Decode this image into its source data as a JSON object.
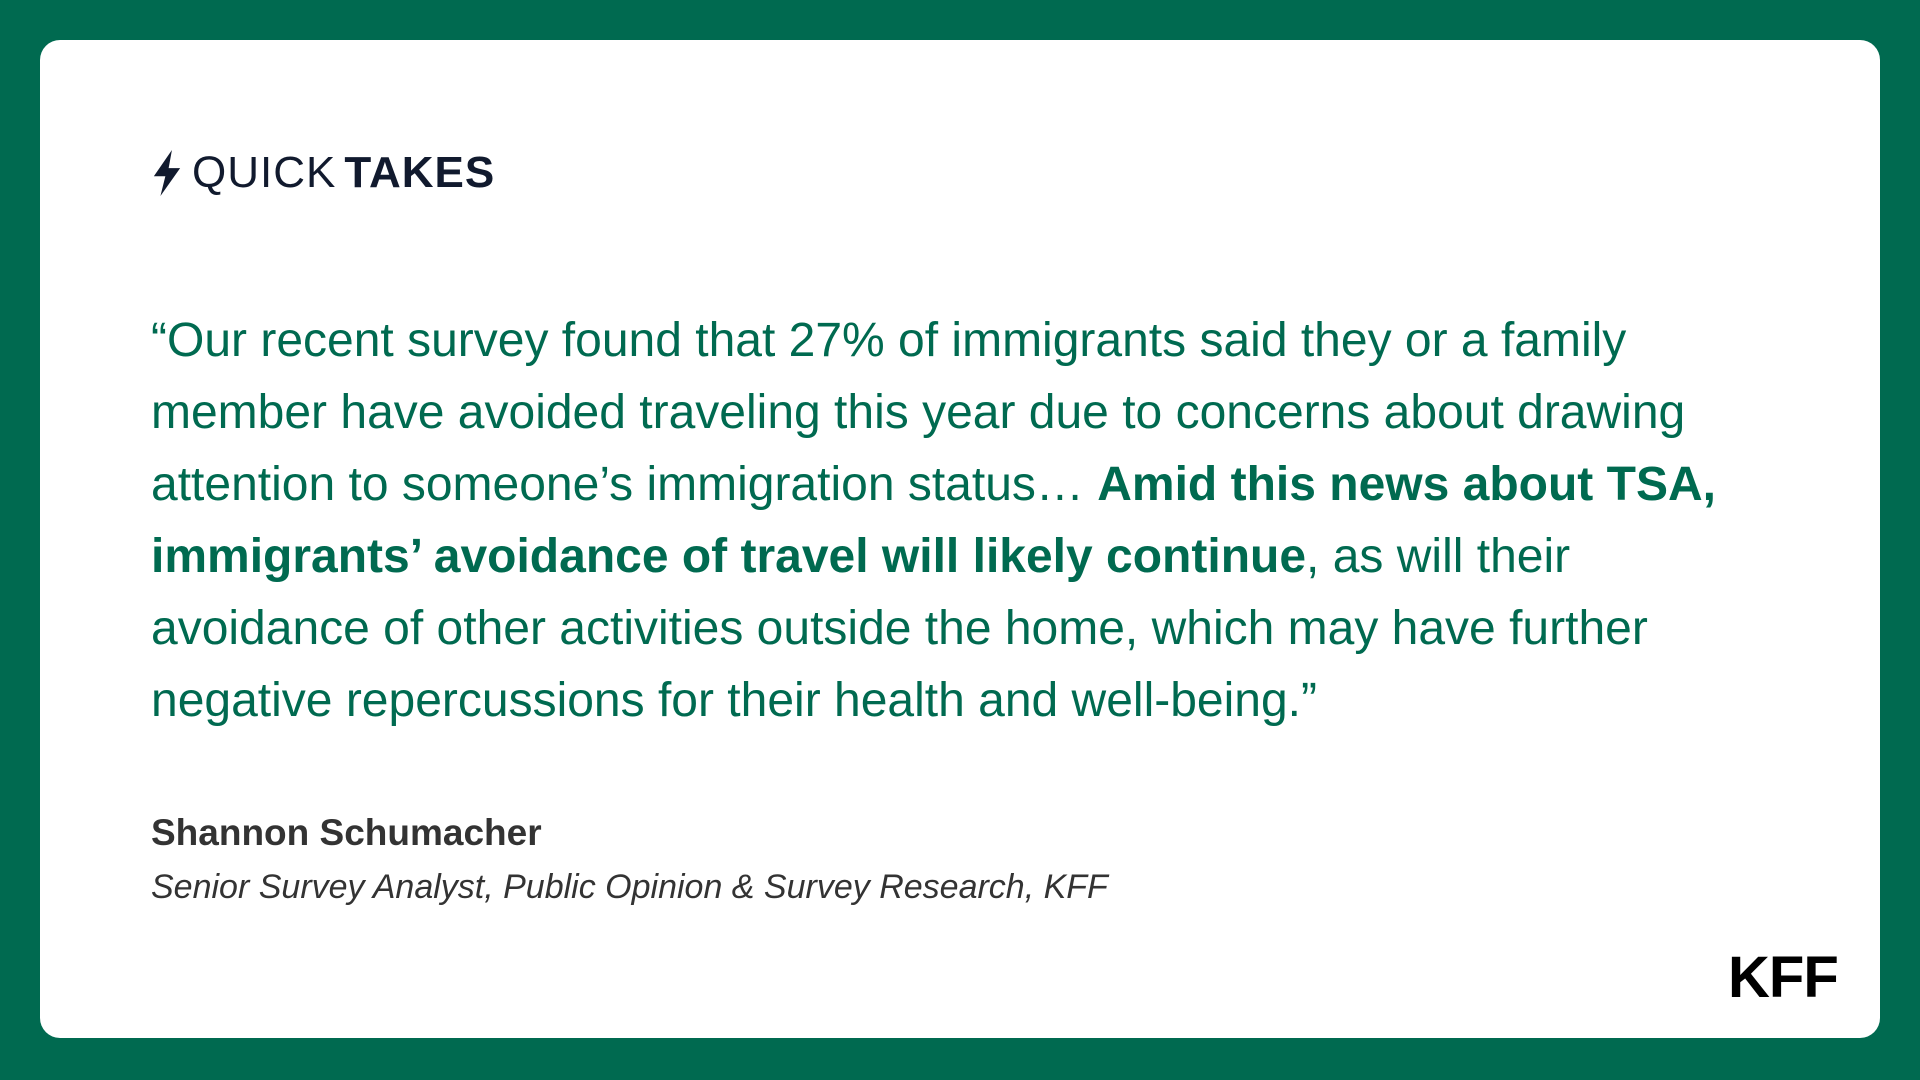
{
  "header": {
    "title_light": "QUICK",
    "title_bold": "TAKES"
  },
  "quote": {
    "text_before": "“Our recent survey found that 27% of immigrants said they or a family member have avoided traveling this year due to concerns about drawing attention to someone’s immigration status… ",
    "text_bold": "Amid this news about TSA, immigrants’ avoidance of travel will likely continue",
    "text_after": ", as will their avoidance of other activities outside the home, which may have further negative repercussions for their health and well-being.”"
  },
  "attribution": {
    "name": "Shannon Schumacher",
    "role": "Senior Survey Analyst, Public Opinion & Survey Research, KFF"
  },
  "logo": "KFF"
}
